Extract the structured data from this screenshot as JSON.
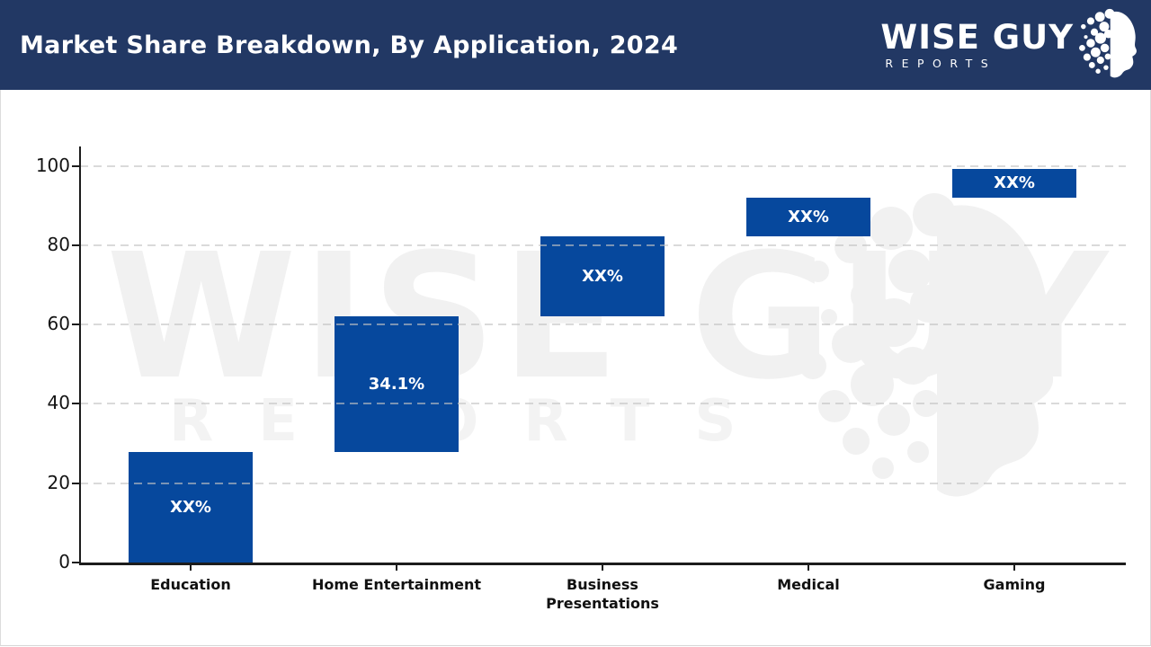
{
  "header": {
    "title": "Market Share Breakdown, By Application, 2024",
    "logo": {
      "line1": "WISE GUY",
      "line2": "REPORTS"
    }
  },
  "watermark": {
    "line1": "WISE GUY",
    "line2": "REPORTS"
  },
  "chart_data": {
    "type": "bar",
    "subtype": "floating-segment-waterfall",
    "title": "Market Share Breakdown, By Application, 2024",
    "categories": [
      "Education",
      "Home Entertainment",
      "Business Presentations",
      "Medical",
      "Gaming"
    ],
    "category_display_lines": [
      [
        "Education"
      ],
      [
        "Home Entertainment"
      ],
      [
        "Business",
        "Presentations"
      ],
      [
        "Medical"
      ],
      [
        "Gaming"
      ]
    ],
    "segments": [
      {
        "category": "Education",
        "start": 0,
        "end": 27.9,
        "label": "XX%"
      },
      {
        "category": "Home Entertainment",
        "start": 27.9,
        "end": 62.0,
        "label": "34.1%"
      },
      {
        "category": "Business Presentations",
        "start": 62.0,
        "end": 82.3,
        "label": "XX%"
      },
      {
        "category": "Medical",
        "start": 82.3,
        "end": 92.1,
        "label": "XX%"
      },
      {
        "category": "Gaming",
        "start": 92.1,
        "end": 99.3,
        "label": "XX%"
      }
    ],
    "yticks": [
      0,
      20,
      40,
      60,
      80,
      100
    ],
    "ylim": [
      0,
      105
    ],
    "xlabel": "",
    "ylabel": "",
    "grid": "dashed-horizontal-over-bars",
    "legend": "none",
    "bar_color": "#06489d",
    "bar_label_color": "#ffffff",
    "header_color": "#223864"
  }
}
